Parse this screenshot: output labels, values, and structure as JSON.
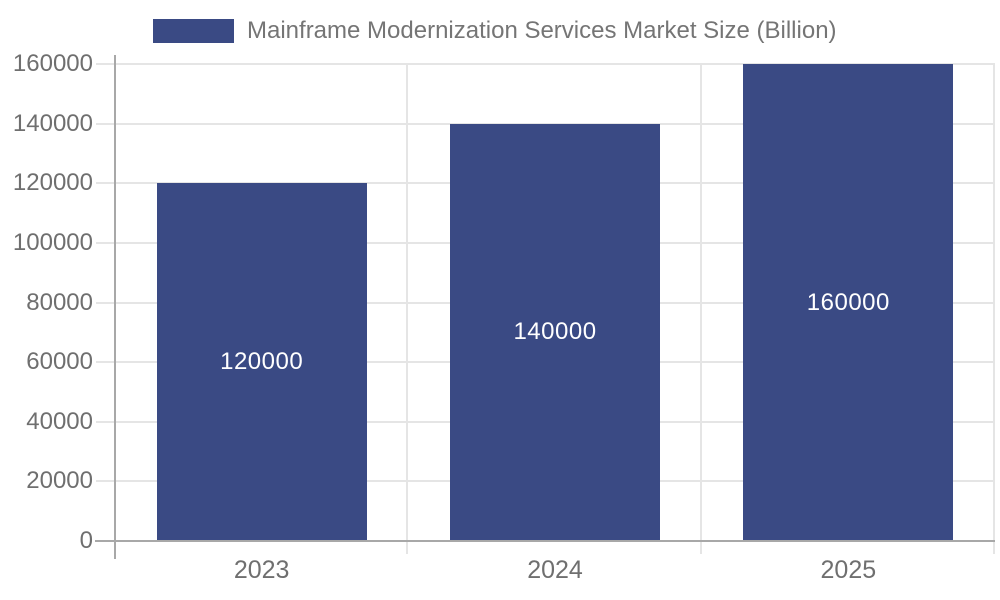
{
  "chart_data": {
    "type": "bar",
    "title": "Mainframe Modernization Services Market Size (Billion)",
    "legend": {
      "position": "top-left",
      "entries": [
        "Mainframe Modernization Services Market Size (Billion)"
      ]
    },
    "categories": [
      "2023",
      "2024",
      "2025"
    ],
    "values": [
      120000,
      140000,
      160000
    ],
    "bar_labels": [
      "120000",
      "140000",
      "160000"
    ],
    "xlabel": "",
    "ylabel": "",
    "ylim": [
      0,
      160000
    ],
    "ytick_step": 20000,
    "ytick_labels": [
      "0",
      "20000",
      "40000",
      "60000",
      "80000",
      "100000",
      "120000",
      "140000",
      "160000"
    ],
    "grid": true
  },
  "colors": {
    "background": "#ffffff",
    "bar": "#3a4a84",
    "bar_label_text": "#ffffff",
    "grid_line": "#e5e5e5",
    "axis_line": "#a8a8a8",
    "tick_text": "#6f6f6f",
    "legend_text": "#757575"
  }
}
